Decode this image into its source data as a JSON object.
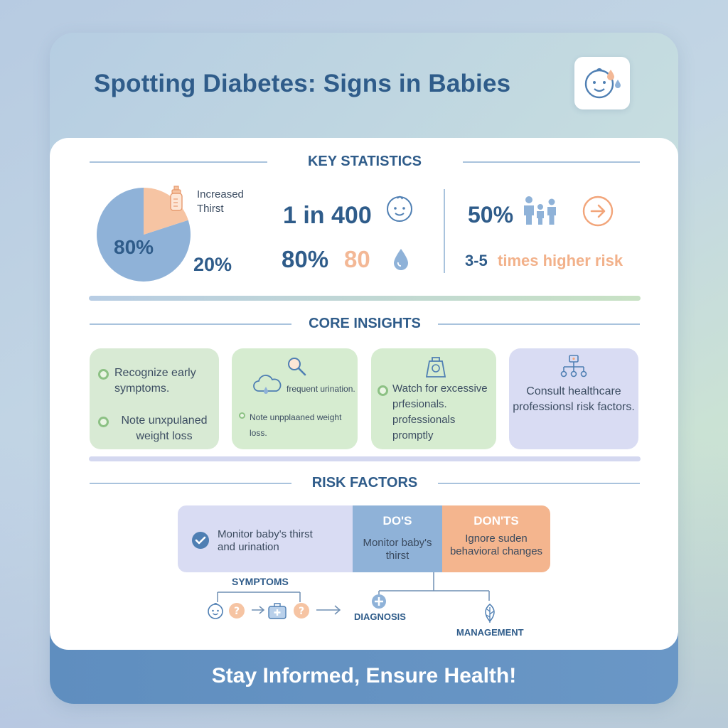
{
  "header": {
    "title": "Spotting Diabetes: Signs in Babies",
    "logo_icon": "baby-face-drop-icon"
  },
  "sections": {
    "key_statistics": "KEY STATISTICS",
    "core_insights": "CORE INSIGHTS",
    "risk_factors": "RISK FACTORS"
  },
  "statistics": {
    "pie_label_large": "80%",
    "pie_label_small": "20%",
    "pie_caption": "Increased Thirst",
    "one_in": "1 in 400",
    "pct_a": "80%",
    "pct_b": "80",
    "family_pct": "50%",
    "risk_text_a": "3-5",
    "risk_text_b": "times higher risk",
    "colors": {
      "blue": "#8fb2d8",
      "peach": "#f6c4a3",
      "dark": "#2f5c8a",
      "orange": "#f2a57a"
    }
  },
  "chart_data": {
    "type": "pie",
    "categories": [
      "",
      ""
    ],
    "values": [
      80,
      20
    ]
  },
  "insights": {
    "box1": {
      "line1": "Recognize early symptoms.",
      "line2": "Note unxpulaned weight loss"
    },
    "box2": {
      "line1": "frequent urination.",
      "line2": "Note unpplaaned weight loss."
    },
    "box3": {
      "line1": "Watch for excessive prfesionals. professionals promptly"
    },
    "box4": {
      "line1": "Consult healthcare professionsl risk factors."
    }
  },
  "risk": {
    "check_text": "Monitor baby's thirst and urination",
    "dos_label": "DO'S",
    "dos_text": "Monitor baby's thirst",
    "donts_label": "DON'TS",
    "donts_text": "Ignore suden behavioral changes",
    "symptoms": "SYMPTOMS",
    "diagnosis": "DIAGNOSIS",
    "management": "MANAGEMENT"
  },
  "footer": {
    "text": "Stay Informed, Ensure Health!"
  }
}
